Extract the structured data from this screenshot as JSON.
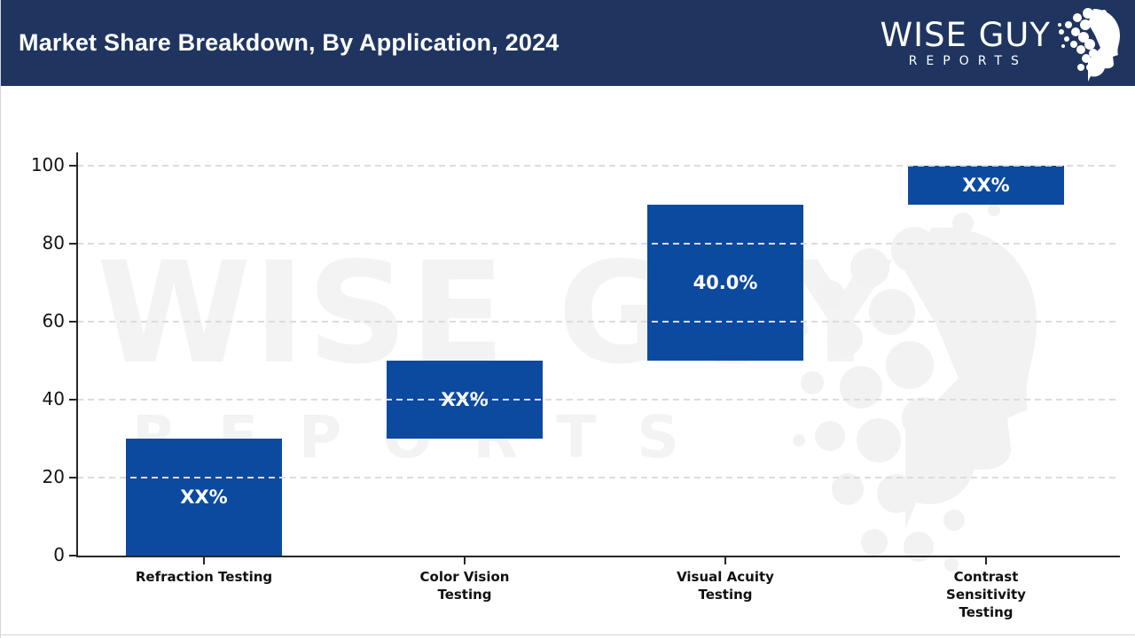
{
  "header": {
    "title": "Market Share Breakdown, By Application, 2024",
    "logo": {
      "line1": "WISE GUY",
      "line2": "REPORTS"
    }
  },
  "watermark": {
    "line1": "WISE GUY",
    "line2": "REPORTS"
  },
  "colors": {
    "header_bg": "#1f3560",
    "bar_fill": "#0c4aa0",
    "bar_label": "#ffffff",
    "grid": "#dcdcdc",
    "axis": "#262626",
    "watermark": "#f3f3f3"
  },
  "chart_data": {
    "type": "bar",
    "subtype": "floating-segment-waterfall",
    "title": "Market Share Breakdown, By Application, 2024",
    "categories": [
      "Refraction Testing",
      "Color Vision Testing",
      "Visual Acuity Testing",
      "Contrast Sensitivity Testing"
    ],
    "category_lines": [
      [
        "Refraction Testing"
      ],
      [
        "Color Vision",
        "Testing"
      ],
      [
        "Visual Acuity",
        "Testing"
      ],
      [
        "Contrast",
        "Sensitivity",
        "Testing"
      ]
    ],
    "bars": [
      {
        "category": "Refraction Testing",
        "start": 0,
        "end": 30,
        "label": "XX%"
      },
      {
        "category": "Color Vision Testing",
        "start": 30,
        "end": 50,
        "label": "XX%"
      },
      {
        "category": "Visual Acuity Testing",
        "start": 50,
        "end": 90,
        "label": "40.0%"
      },
      {
        "category": "Contrast Sensitivity Testing",
        "start": 90,
        "end": 100,
        "label": "XX%"
      }
    ],
    "xlabel": "",
    "ylabel": "",
    "yticks": [
      0,
      20,
      40,
      60,
      80,
      100
    ],
    "ylim": [
      0,
      105
    ],
    "grid": "horizontal-dashed",
    "legend": "none"
  }
}
